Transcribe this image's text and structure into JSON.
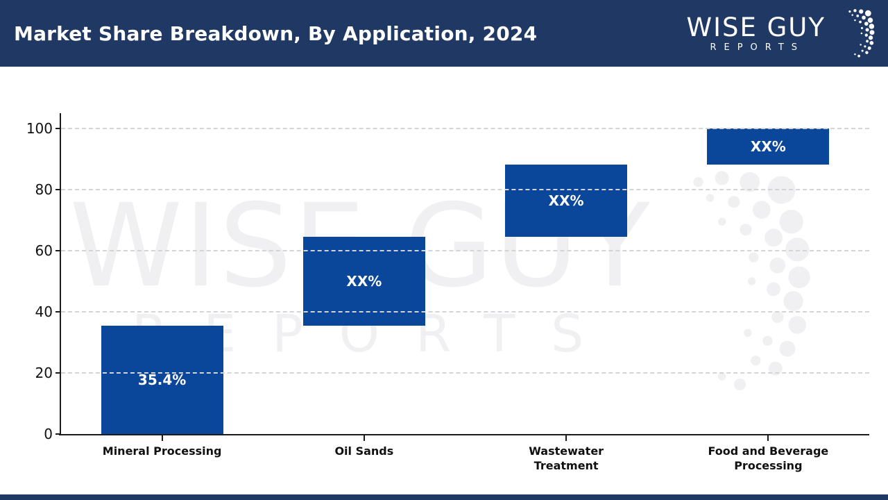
{
  "header": {
    "title": "Market Share Breakdown, By Application, 2024",
    "bg_color": "#1F3864",
    "logo": {
      "line1": "WISE GUY",
      "line2": "REPORTS"
    }
  },
  "watermark": {
    "line1": "WISE GUY",
    "line2": "REPORTS"
  },
  "chart_data": {
    "type": "bar",
    "subtype": "waterfall-floating-bars",
    "title": "Market Share Breakdown, By Application, 2024",
    "categories": [
      "Mineral Processing",
      "Oil Sands",
      "Wastewater\nTreatment",
      "Food and Beverage\nProcessing"
    ],
    "segments": [
      {
        "category": "Mineral Processing",
        "start": 0,
        "end": 35.4,
        "label": "35.4%"
      },
      {
        "category": "Oil Sands",
        "start": 35.4,
        "end": 64.5,
        "label": "XX%"
      },
      {
        "category": "Wastewater Treatment",
        "start": 64.5,
        "end": 88.2,
        "label": "XX%"
      },
      {
        "category": "Food and Beverage Processing",
        "start": 88.2,
        "end": 100,
        "label": "XX%"
      }
    ],
    "yticks": [
      0,
      20,
      40,
      60,
      80,
      100
    ],
    "ylim": [
      0,
      105
    ],
    "grid": "horizontal dashed, drawn above bars",
    "legend": "none",
    "bar_color": "#0A4699",
    "bar_label_color": "#ffffff"
  }
}
